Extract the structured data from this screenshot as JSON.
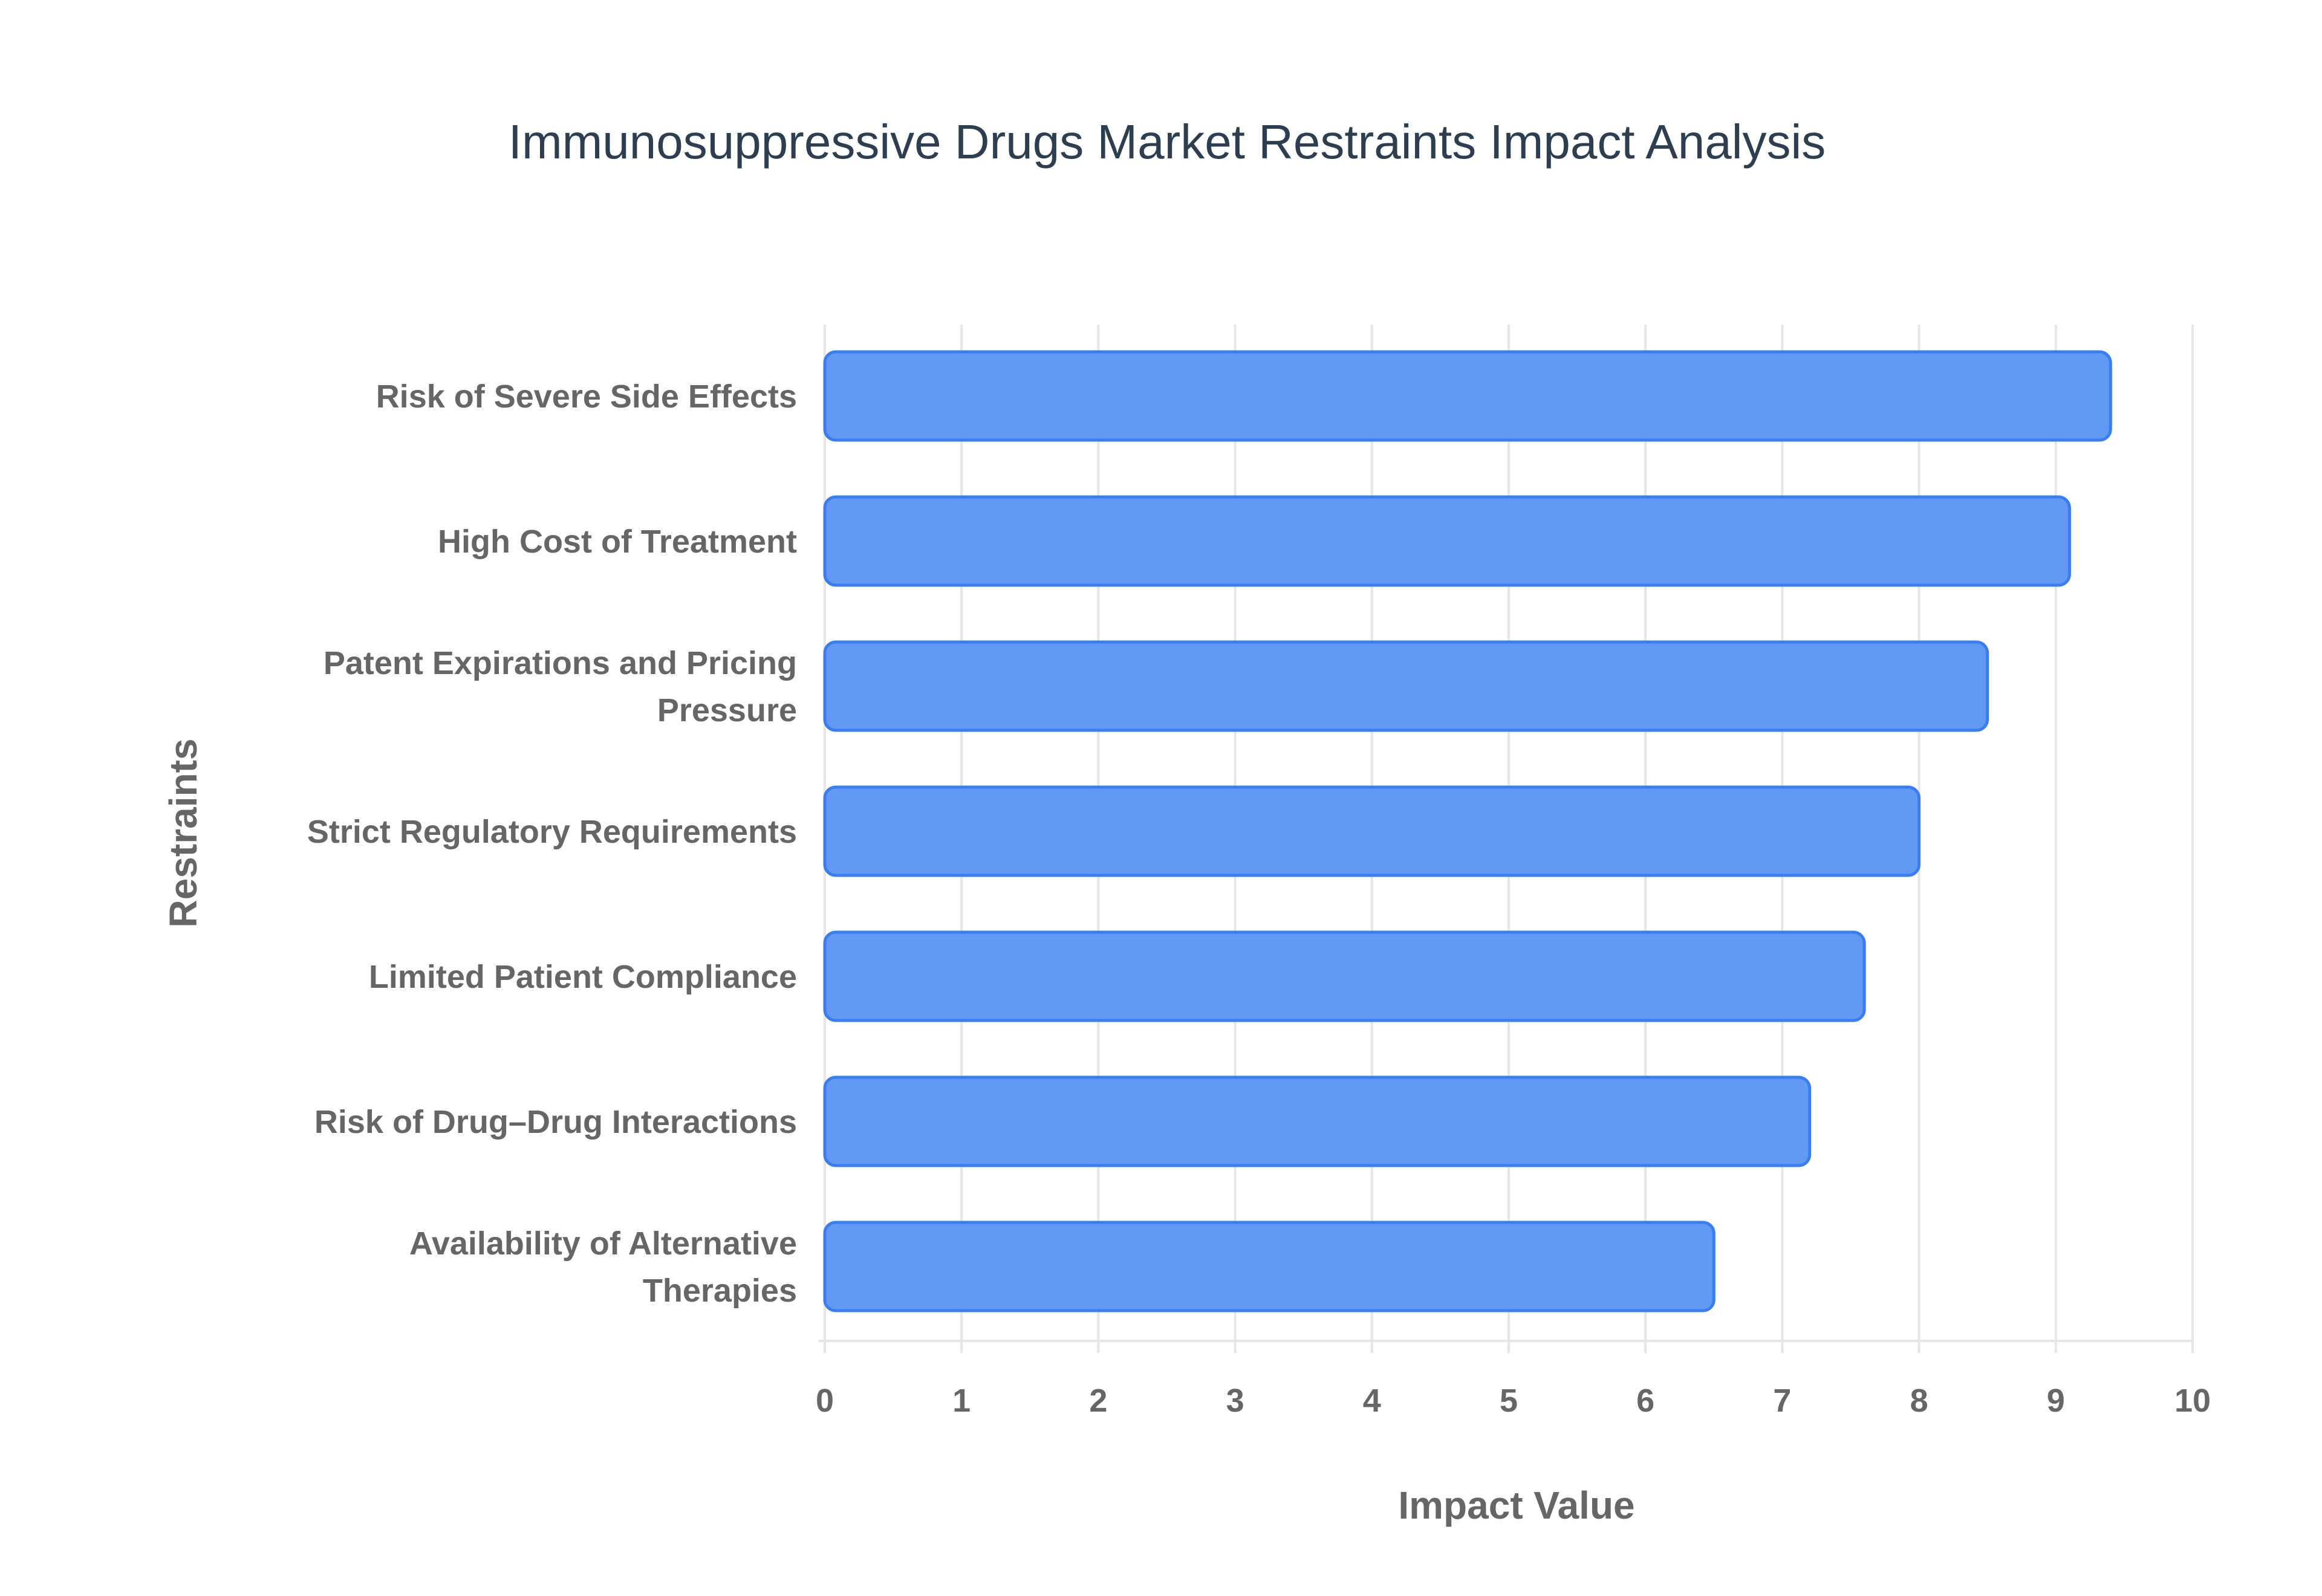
{
  "chart_data": {
    "type": "bar",
    "orientation": "horizontal",
    "title": "Immunosuppressive Drugs Market Restraints Impact Analysis",
    "xlabel": "Impact Value",
    "ylabel": "Restraints",
    "xlim": [
      0,
      10
    ],
    "xticks": [
      "0",
      "1",
      "2",
      "3",
      "4",
      "5",
      "6",
      "7",
      "8",
      "9",
      "10"
    ],
    "grid": true,
    "legend": "none",
    "bar_color": "#6199f5",
    "bar_border_color": "#3b7ded",
    "categories": [
      [
        "Risk of Severe Side Effects"
      ],
      [
        "High Cost of Treatment"
      ],
      [
        "Patent Expirations and Pricing",
        "Pressure"
      ],
      [
        "Strict Regulatory Requirements"
      ],
      [
        "Limited Patient Compliance"
      ],
      [
        "Risk of Drug–Drug Interactions"
      ],
      [
        "Availability of Alternative",
        "Therapies"
      ]
    ],
    "values": [
      9.4,
      9.1,
      8.5,
      8.0,
      7.6,
      7.2,
      6.5
    ]
  }
}
